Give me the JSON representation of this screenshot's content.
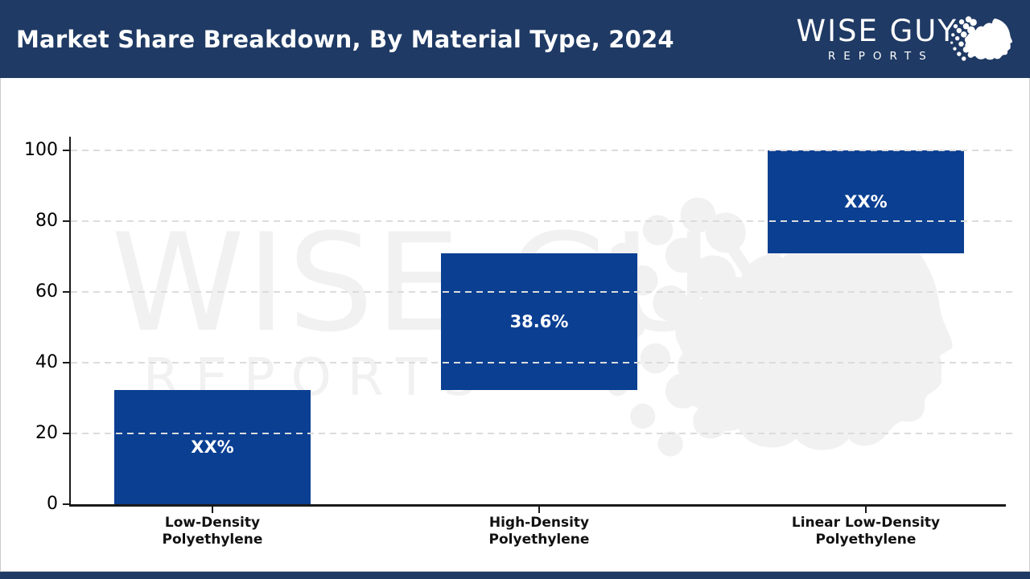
{
  "header": {
    "title": "Market Share Breakdown, By Material Type, 2024",
    "logo_line1": "WISE GUY",
    "logo_line2": "REPORTS"
  },
  "watermark": {
    "line1": "WISE GUY",
    "line2": "REPORTS"
  },
  "colors": {
    "header_bg": "#1f3a64",
    "footer_bg": "#1f3a64",
    "bar_blue": "#0a3f92",
    "grid": "#dcdcdc",
    "axis": "#1a1a1a",
    "watermark": "#f1f1f1",
    "border": "#cccccc"
  },
  "chart_data": {
    "type": "bar",
    "variant": "floating-stacked-percentage",
    "title": "Market Share Breakdown, By Material Type, 2024",
    "categories": [
      "Low-Density\nPolyethylene",
      "High-Density\nPolyethylene",
      "Linear Low-Density\nPolyethylene"
    ],
    "segments": [
      {
        "category": "Low-Density Polyethylene",
        "start": 0,
        "end": 32.3,
        "size": 32.3,
        "label": "XX%"
      },
      {
        "category": "High-Density Polyethylene",
        "start": 32.3,
        "end": 70.9,
        "size": 38.6,
        "label": "38.6%"
      },
      {
        "category": "Linear Low-Density Polyethylene",
        "start": 70.9,
        "end": 100,
        "size": 29.1,
        "label": "XX%"
      }
    ],
    "ylim": [
      0,
      100
    ],
    "yticks": [
      0,
      20,
      40,
      60,
      80,
      100
    ],
    "xlabel": "",
    "ylabel": "",
    "grid": "horizontal-dashed-over-bars",
    "legend": "none",
    "bar_color": "#0a3f92",
    "label_color": "#ffffff"
  }
}
